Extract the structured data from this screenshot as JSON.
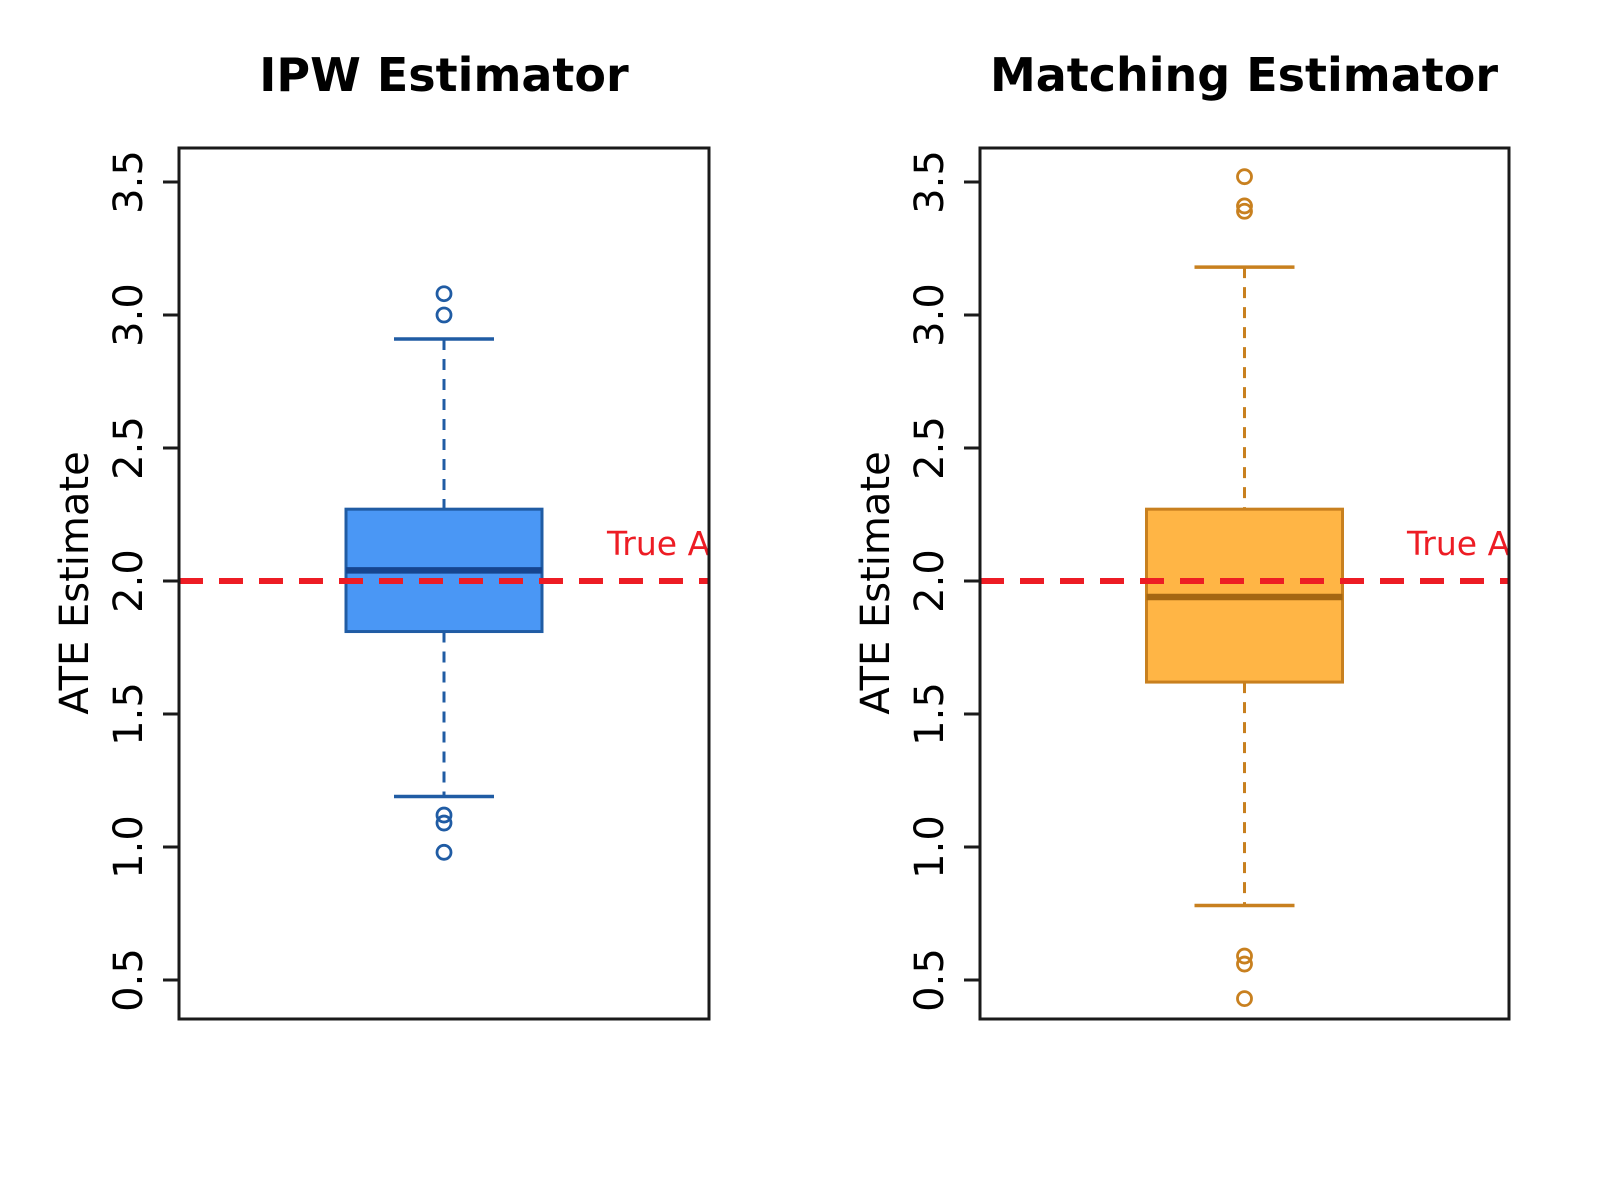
{
  "figure": {
    "background": "#ffffff",
    "frame_color": "#1a1a1a"
  },
  "chart_data": [
    {
      "type": "boxplot",
      "title": "IPW Estimator",
      "ylabel": "ATE Estimate",
      "ytick_labels": [
        "0.5",
        "1.0",
        "1.5",
        "2.0",
        "2.5",
        "3.0",
        "3.5"
      ],
      "ytick_values": [
        0.5,
        1.0,
        1.5,
        2.0,
        2.5,
        3.0,
        3.5
      ],
      "ylim": [
        0.35,
        3.63
      ],
      "grid": false,
      "box": {
        "median": 2.04,
        "q1": 1.81,
        "q3": 2.27,
        "whisker_low": 1.19,
        "whisker_high": 2.91,
        "outliers": [
          3.08,
          3.0,
          1.12,
          1.09,
          0.98
        ]
      },
      "colors": {
        "fill": "#4A97F5",
        "border": "#205CA4",
        "median": "#16458F"
      },
      "reference_line": {
        "value": 2.0,
        "label": "True ATE",
        "color": "#ED1C24",
        "style": "dashed"
      }
    },
    {
      "type": "boxplot",
      "title": "Matching Estimator",
      "ylabel": "ATE Estimate",
      "ytick_labels": [
        "0.5",
        "1.0",
        "1.5",
        "2.0",
        "2.5",
        "3.0",
        "3.5"
      ],
      "ytick_values": [
        0.5,
        1.0,
        1.5,
        2.0,
        2.5,
        3.0,
        3.5
      ],
      "ylim": [
        0.35,
        3.63
      ],
      "grid": false,
      "box": {
        "median": 1.94,
        "q1": 1.62,
        "q3": 2.27,
        "whisker_low": 0.78,
        "whisker_high": 3.18,
        "outliers": [
          3.52,
          3.41,
          3.39,
          0.59,
          0.56,
          0.43
        ]
      },
      "colors": {
        "fill": "#FFB545",
        "border": "#C8801F",
        "median": "#A46612"
      },
      "reference_line": {
        "value": 2.0,
        "label": "True ATE",
        "color": "#ED1C24",
        "style": "dashed"
      }
    }
  ]
}
